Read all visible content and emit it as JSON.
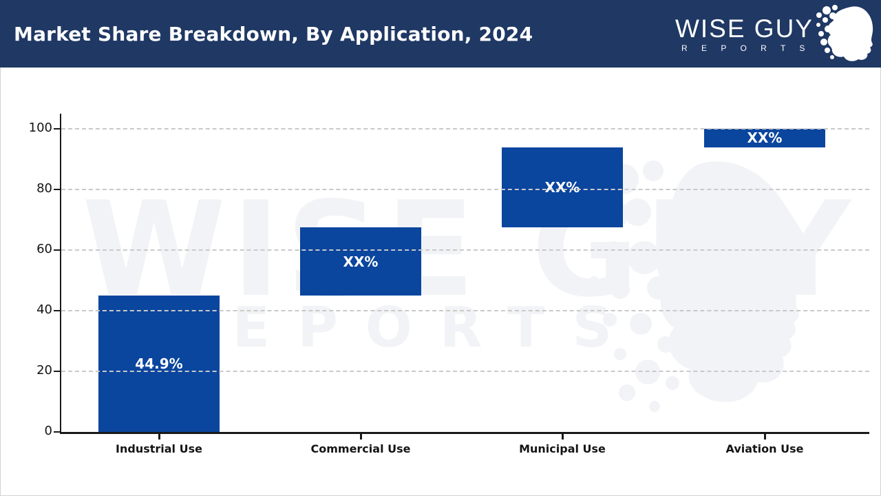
{
  "header": {
    "title": "Market Share Breakdown, By Application, 2024",
    "logo": {
      "line1": "WISE GUY",
      "line2": "R E P O R T S"
    }
  },
  "watermark": {
    "line1": "WISE GUY",
    "line2": "REPORTS"
  },
  "colors": {
    "header_bg": "#1f3864",
    "bar": "#0a459e",
    "bar_label": "#ffffff",
    "grid": "#c9c9c9",
    "axis": "#1a1a1a",
    "watermark": "#f2f3f6"
  },
  "chart_data": {
    "type": "bar",
    "subtype": "waterfall",
    "title": "Market Share Breakdown, By Application, 2024",
    "categories": [
      "Industrial Use",
      "Commercial Use",
      "Municipal Use",
      "Aviation Use"
    ],
    "segments": [
      {
        "category": "Industrial Use",
        "start": 0,
        "end": 44.9,
        "label": "44.9%"
      },
      {
        "category": "Commercial Use",
        "start": 44.9,
        "end": 67.5,
        "label": "XX%"
      },
      {
        "category": "Municipal Use",
        "start": 67.5,
        "end": 93.9,
        "label": "XX%"
      },
      {
        "category": "Aviation Use",
        "start": 93.9,
        "end": 100,
        "label": "XX%"
      }
    ],
    "values_estimated": [
      44.9,
      22.6,
      26.4,
      6.1
    ],
    "xlabel": "",
    "ylabel": "",
    "ylim": [
      0,
      100
    ],
    "yticks": [
      0,
      20,
      40,
      60,
      80,
      100
    ],
    "grid": "horizontal-dashed",
    "legend": false
  }
}
